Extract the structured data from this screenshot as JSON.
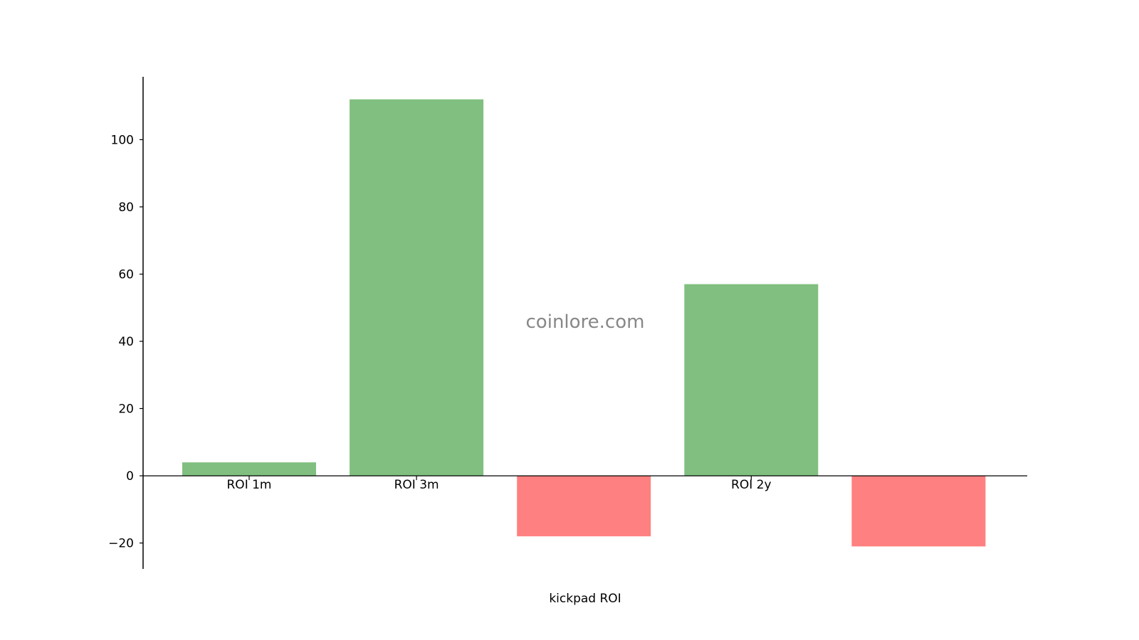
{
  "chart_data": {
    "type": "bar",
    "title": "",
    "xlabel": "kickpad ROI",
    "ylabel": "",
    "watermark": "coinlore.com",
    "categories": [
      "ROI 1m",
      "ROI 3m",
      "",
      "ROI 2y",
      ""
    ],
    "values": [
      4,
      112,
      -18,
      57,
      -21
    ],
    "colors": [
      "#80bf80",
      "#80bf80",
      "#ff8080",
      "#80bf80",
      "#ff8080"
    ],
    "positive_color": "#80bf80",
    "negative_color": "#ff8080",
    "yticks": [
      {
        "value": 100,
        "label": "100"
      },
      {
        "value": 80,
        "label": "80"
      },
      {
        "value": 60,
        "label": "60"
      },
      {
        "value": 40,
        "label": "40"
      },
      {
        "value": 20,
        "label": "20"
      },
      {
        "value": 0,
        "label": "0"
      },
      {
        "value": -20,
        "label": "−20"
      }
    ],
    "ylim": [
      -27.7,
      118.7
    ],
    "xlim": [
      -0.634,
      4.649
    ],
    "bar_rel_width": 0.8,
    "grid": false,
    "legend_position": "none",
    "axis_color": "#000000",
    "tick_text_color": "#000000",
    "watermark_color": "#878787",
    "background_color": "#ffffff"
  }
}
